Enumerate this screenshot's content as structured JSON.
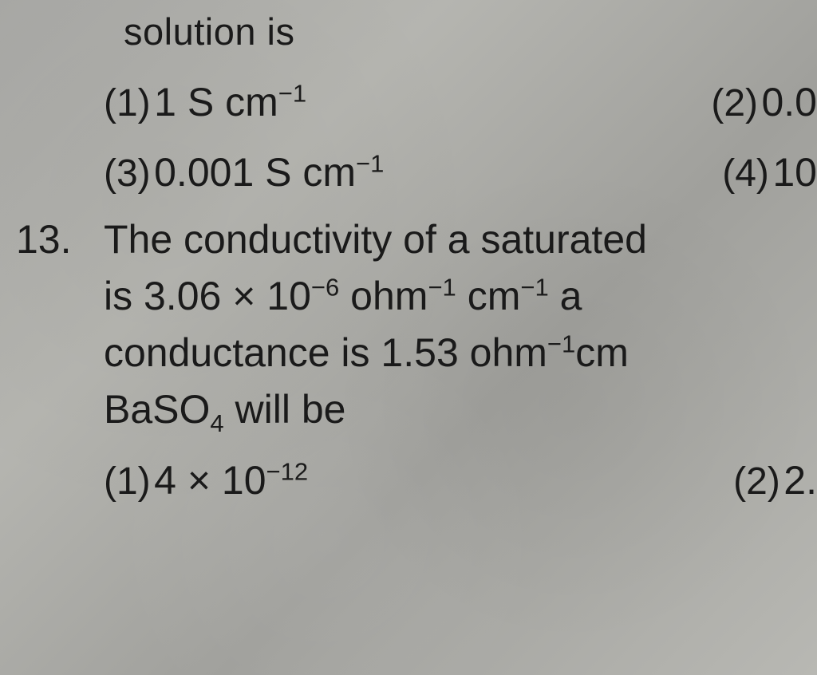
{
  "header": {
    "text": "solution is"
  },
  "q12_options": {
    "opt1": {
      "num": "(1)",
      "text_html": "1 S cm<sup>−1</sup>"
    },
    "opt2": {
      "num": "(2)",
      "text_html": "0.0"
    },
    "opt3": {
      "num": "(3)",
      "text_html": "0.001 S cm<sup>−1</sup>"
    },
    "opt4": {
      "num": "(4)",
      "text_html": "10"
    }
  },
  "q13": {
    "number": "13.",
    "line1_html": "The conductivity of a saturated",
    "line2_html": "is 3.06 × 10<sup>−6</sup> ohm<sup>−1</sup> cm<sup>−1</sup> a",
    "line3_html": "conductance is 1.53 ohm<sup>−1</sup>cm",
    "line4_html": "BaSO<sub>4</sub> will be",
    "opt1": {
      "num": "(1)",
      "text_html": "4 × 10<sup>−12</sup>"
    },
    "opt2": {
      "num": "(2)",
      "text_html": "2."
    }
  },
  "style": {
    "background_color": "#adadaa",
    "text_color": "#1a1a1a",
    "font_family": "Arial",
    "header_fontsize": 47,
    "body_fontsize": 50,
    "sup_scale": 0.62
  }
}
